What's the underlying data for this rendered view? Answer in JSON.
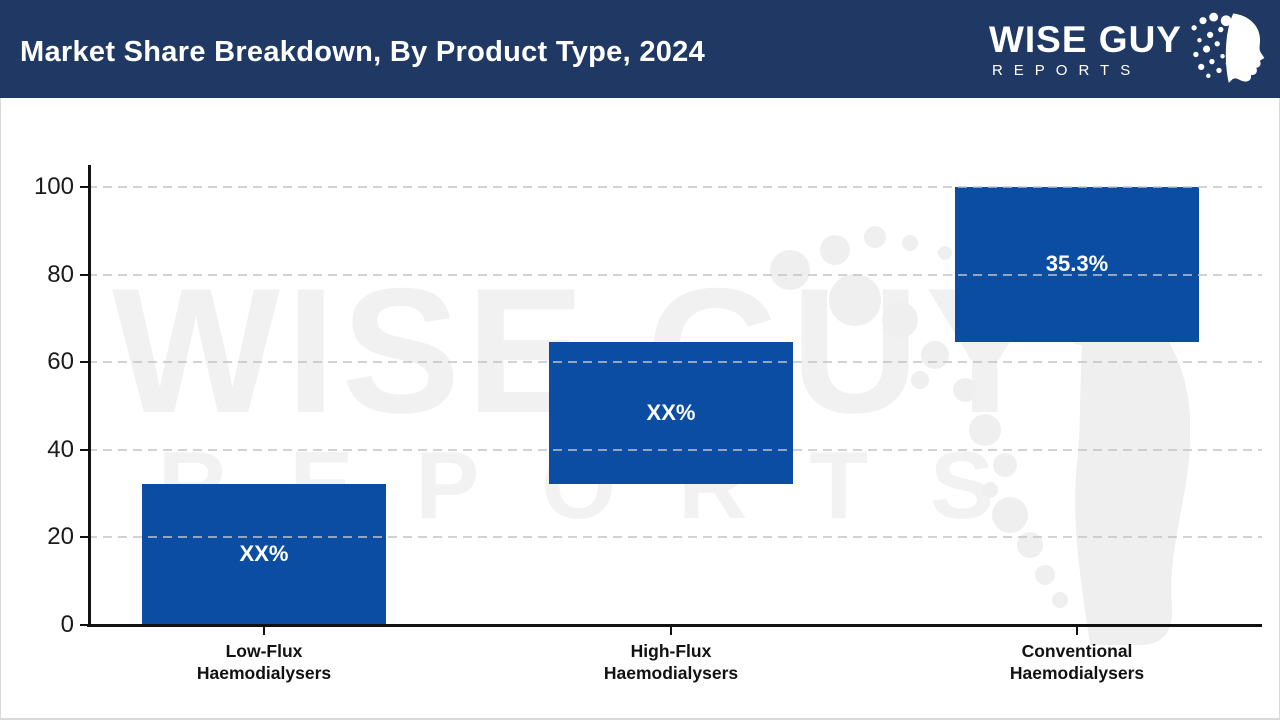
{
  "header": {
    "title": "Market Share Breakdown, By Product Type, 2024",
    "logo": {
      "line1": "WISE GUY",
      "line2": "REPORTS"
    }
  },
  "watermark": {
    "line1": "WISE GUY",
    "line2": "REPORTS"
  },
  "chart_data": {
    "type": "bar",
    "subtype": "floating segment bars stacking to 100%",
    "title": "Market Share Breakdown, By Product Type, 2024",
    "categories": [
      {
        "line1": "Low-Flux",
        "line2": "Haemodialysers"
      },
      {
        "line1": "High-Flux",
        "line2": "Haemodialysers"
      },
      {
        "line1": "Conventional",
        "line2": "Haemodialysers"
      }
    ],
    "bars": [
      {
        "category": "Low-Flux Haemodialysers",
        "start": 0,
        "end": 32.2,
        "value_label": "XX%"
      },
      {
        "category": "High-Flux Haemodialysers",
        "start": 32.2,
        "end": 64.7,
        "value_label": "XX%"
      },
      {
        "category": "Conventional Haemodialysers",
        "start": 64.7,
        "end": 100,
        "value_label": "35.3%"
      }
    ],
    "ylim": [
      0,
      100
    ],
    "yticks": [
      "0",
      "20",
      "40",
      "60",
      "80",
      "100"
    ],
    "grid": "horizontal dashed",
    "legend": "none",
    "bar_color": "#0B4DA2",
    "bar_label_color": "#FFFFFF"
  },
  "colors": {
    "header_bg": "#1F3864",
    "bar": "#0B4DA2",
    "axis": "#111111",
    "grid": "#D9D9D9",
    "watermark": "#F1F1F1",
    "page_border": "#D9D9D9"
  }
}
